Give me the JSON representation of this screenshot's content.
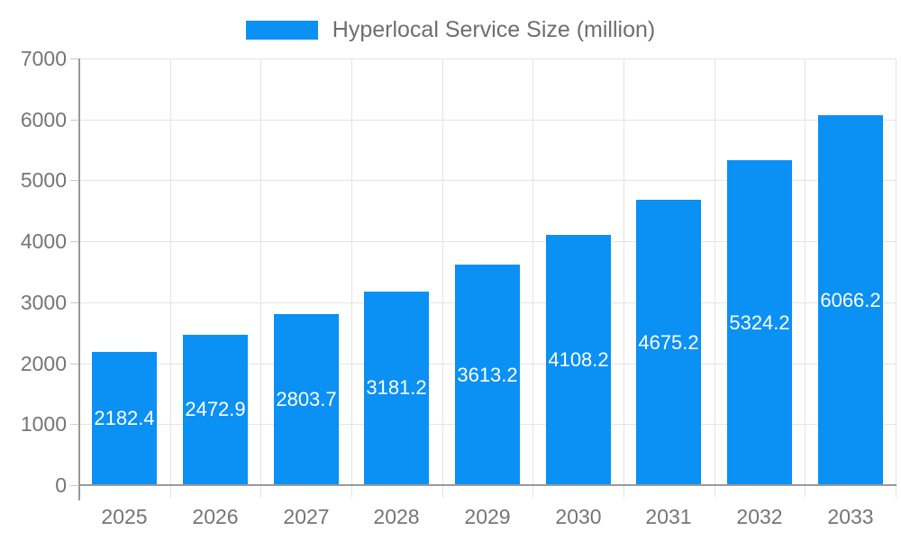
{
  "chart_data": {
    "type": "bar",
    "title": "Hyperlocal Service Size (million)",
    "legend_position": "top",
    "legend_entries": [
      "Hyperlocal Service Size (million)"
    ],
    "categories": [
      "2025",
      "2026",
      "2027",
      "2028",
      "2029",
      "2030",
      "2031",
      "2032",
      "2033"
    ],
    "series": [
      {
        "name": "Hyperlocal Service Size (million)",
        "values": [
          2182.4,
          2472.9,
          2803.7,
          3181.2,
          3613.2,
          4108.2,
          4675.2,
          5324.2,
          6066.2
        ]
      }
    ],
    "bar_value_labels": [
      "2182.4",
      "2472.9",
      "2803.7",
      "3181.2",
      "3613.2",
      "4108.2",
      "4675.2",
      "5324.2",
      "6066.2"
    ],
    "xlabel": "",
    "ylabel": "",
    "ylim": [
      0,
      7000
    ],
    "yticks": [
      0,
      1000,
      2000,
      3000,
      4000,
      5000,
      6000,
      7000
    ],
    "grid": true
  },
  "colors": {
    "bar": "#0B90F4",
    "bar_label": "#ffffff",
    "axis_line": "#999999",
    "grid_line": "#e4e4e4",
    "tick_line": "#c9c9c9",
    "tick_text": "#757575",
    "legend_text": "#6e6e6e",
    "background": "#ffffff"
  }
}
